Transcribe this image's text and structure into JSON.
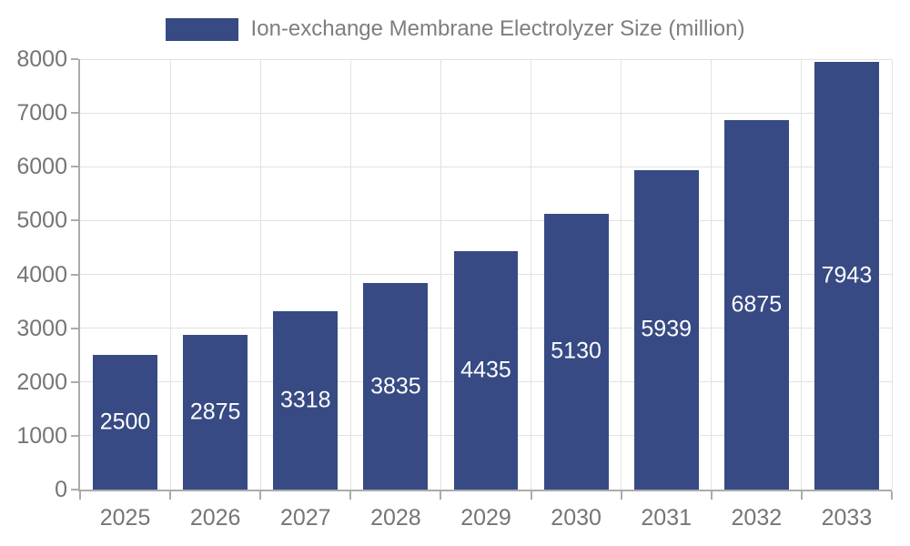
{
  "legend": {
    "label": "Ion-exchange Membrane Electrolyzer Size (million)"
  },
  "chart_data": {
    "type": "bar",
    "title": "Ion-exchange Membrane Electrolyzer Size (million)",
    "categories": [
      "2025",
      "2026",
      "2027",
      "2028",
      "2029",
      "2030",
      "2031",
      "2032",
      "2033"
    ],
    "series": [
      {
        "name": "Ion-exchange Membrane Electrolyzer Size (million)",
        "values": [
          2500,
          2875,
          3318,
          3835,
          4435,
          5130,
          5939,
          6875,
          7943
        ]
      }
    ],
    "xlabel": "",
    "ylabel": "",
    "ylim": [
      0,
      8000
    ],
    "ytick_interval": 1000,
    "ytick_labels": [
      "0",
      "1000",
      "2000",
      "3000",
      "4000",
      "5000",
      "6000",
      "7000",
      "8000"
    ],
    "grid": true,
    "legend_position": "top-center",
    "bar_labels_inside": true,
    "colors": {
      "bar": "#374a84",
      "bar_label": "#ffffff",
      "grid": "#e2e2e2",
      "axis": "#ababab",
      "tick_text": "#757575",
      "legend_text": "#7e7e7e"
    }
  }
}
